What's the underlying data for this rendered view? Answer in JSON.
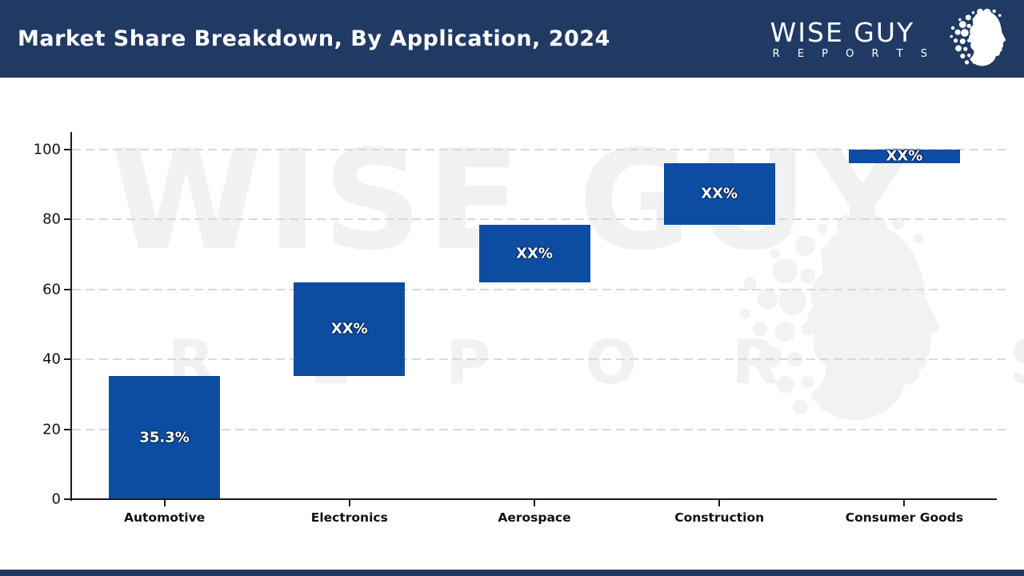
{
  "header": {
    "title": "Market Share Breakdown, By Application, 2024",
    "logo": {
      "line1": "WISE GUY",
      "line2": "R E P O R T S"
    }
  },
  "watermark": {
    "line1": "WISE GUY",
    "line2": "R E P O R T S"
  },
  "colors": {
    "header_bg": "#213A64",
    "bar": "#0C4DA2",
    "bar_label": "#ffffff",
    "grid": "#d9d9d9",
    "axis": "#1a1a1a",
    "watermark": "#f1f1f3"
  },
  "chart_data": {
    "type": "bar",
    "subtype": "waterfall",
    "title": "Market Share Breakdown, By Application, 2024",
    "categories": [
      "Automotive",
      "Electronics",
      "Aerospace",
      "Construction",
      "Consumer Goods"
    ],
    "bars": [
      {
        "category": "Automotive",
        "start": 0,
        "end": 35.3,
        "label": "35.3%"
      },
      {
        "category": "Electronics",
        "start": 35.3,
        "end": 61.9,
        "label": "XX%"
      },
      {
        "category": "Aerospace",
        "start": 61.9,
        "end": 78.4,
        "label": "XX%"
      },
      {
        "category": "Construction",
        "start": 78.4,
        "end": 96.1,
        "label": "XX%"
      },
      {
        "category": "Consumer Goods",
        "start": 96.1,
        "end": 100,
        "label": "XX%"
      }
    ],
    "xlabel": "",
    "ylabel": "",
    "ylim": [
      0,
      105
    ],
    "yticks": [
      0,
      20,
      40,
      60,
      80,
      100
    ],
    "grid": "horizontal-dashed",
    "legend": "none",
    "bar_color": "#0C4DA2"
  }
}
